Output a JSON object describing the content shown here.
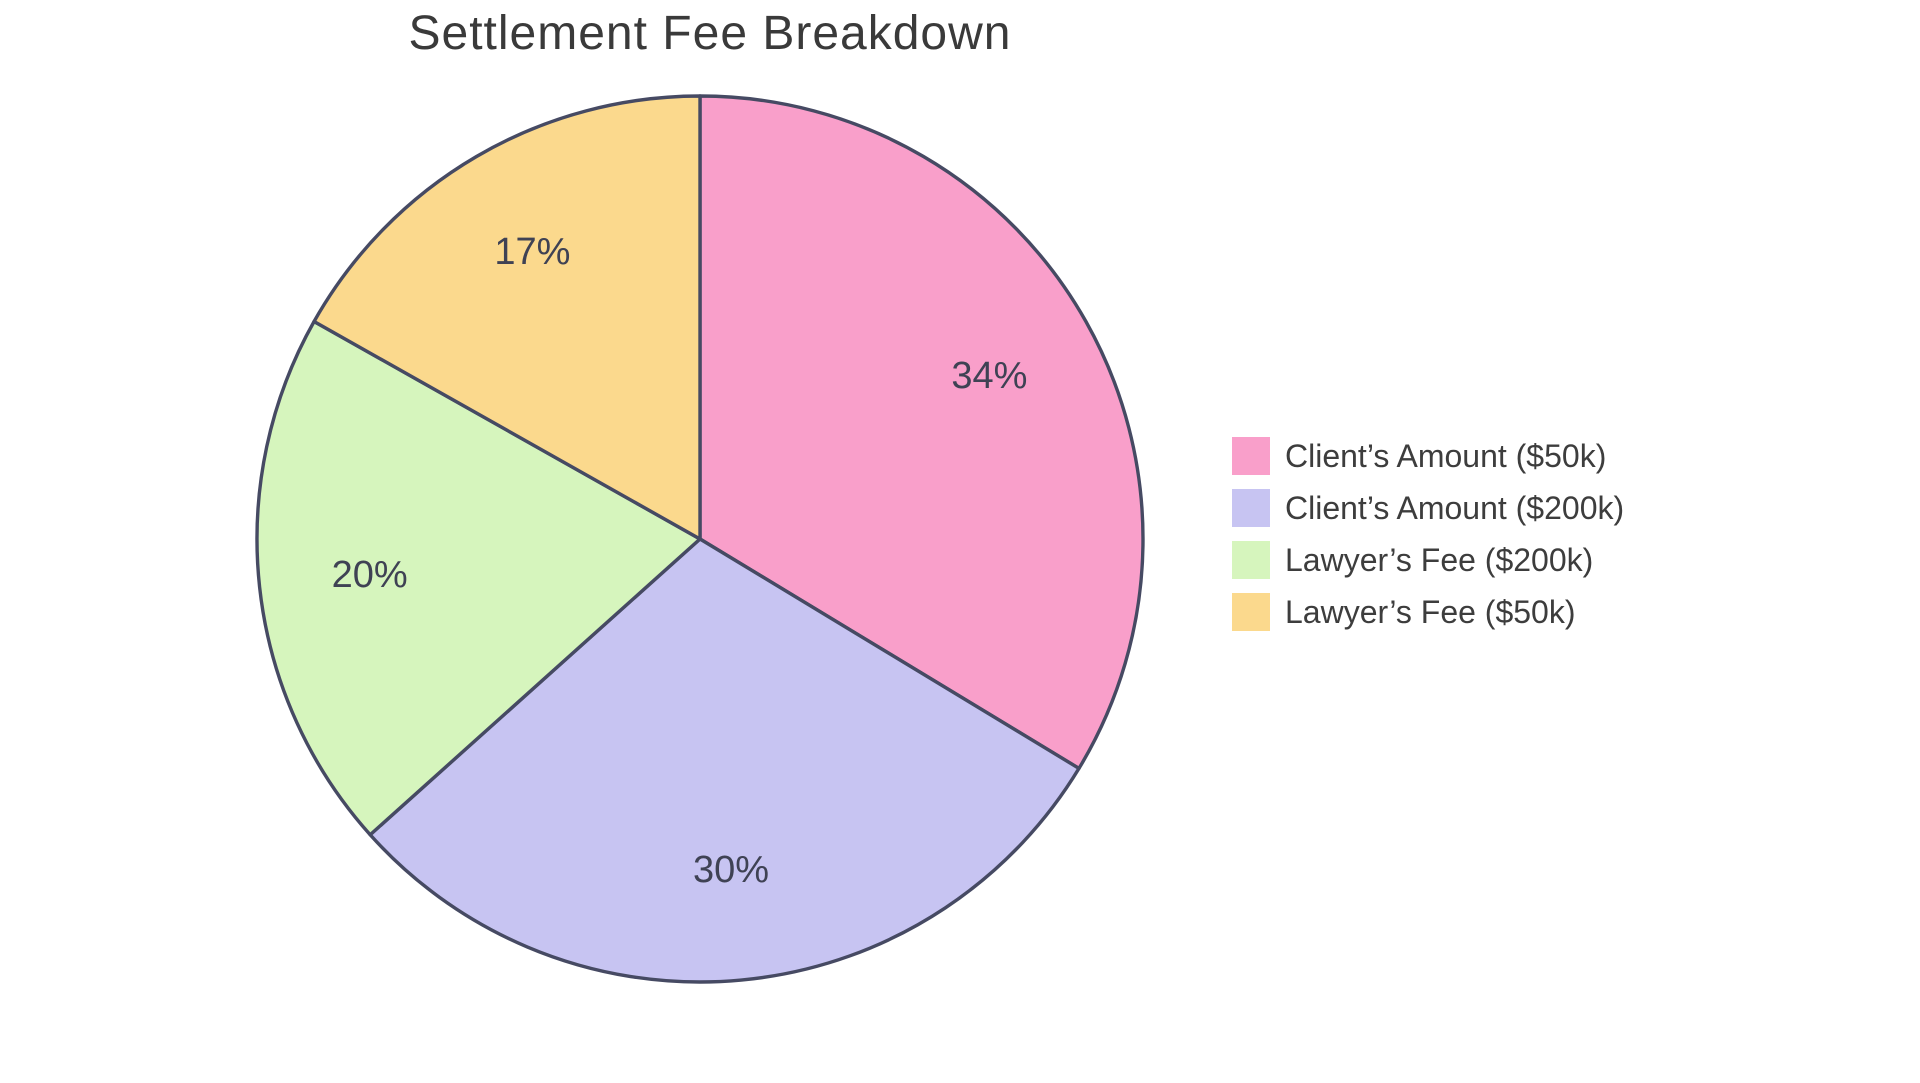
{
  "title": "Settlement Fee Breakdown",
  "chart_data": {
    "type": "pie",
    "title": "Settlement Fee Breakdown",
    "categories": [
      "Client’s Amount ($50k)",
      "Client’s Amount ($200k)",
      "Lawyer’s Fee ($200k)",
      "Lawyer’s Fee ($50k)"
    ],
    "values": [
      34,
      30,
      20,
      17
    ],
    "slice_labels": [
      "34%",
      "30%",
      "20%",
      "17%"
    ],
    "unit": "percent",
    "colors": [
      "#F99FCA",
      "#C7C4F2",
      "#D6F5BD",
      "#FBD98D"
    ],
    "start_angle": "top",
    "direction": "clockwise",
    "stroke_color": "#464A63",
    "label_color": "#3F4254",
    "title_color": "#3A3A3A",
    "legend_text_color": "#3D3D3D",
    "legend_position": "right",
    "background": "#FFFFFF"
  }
}
